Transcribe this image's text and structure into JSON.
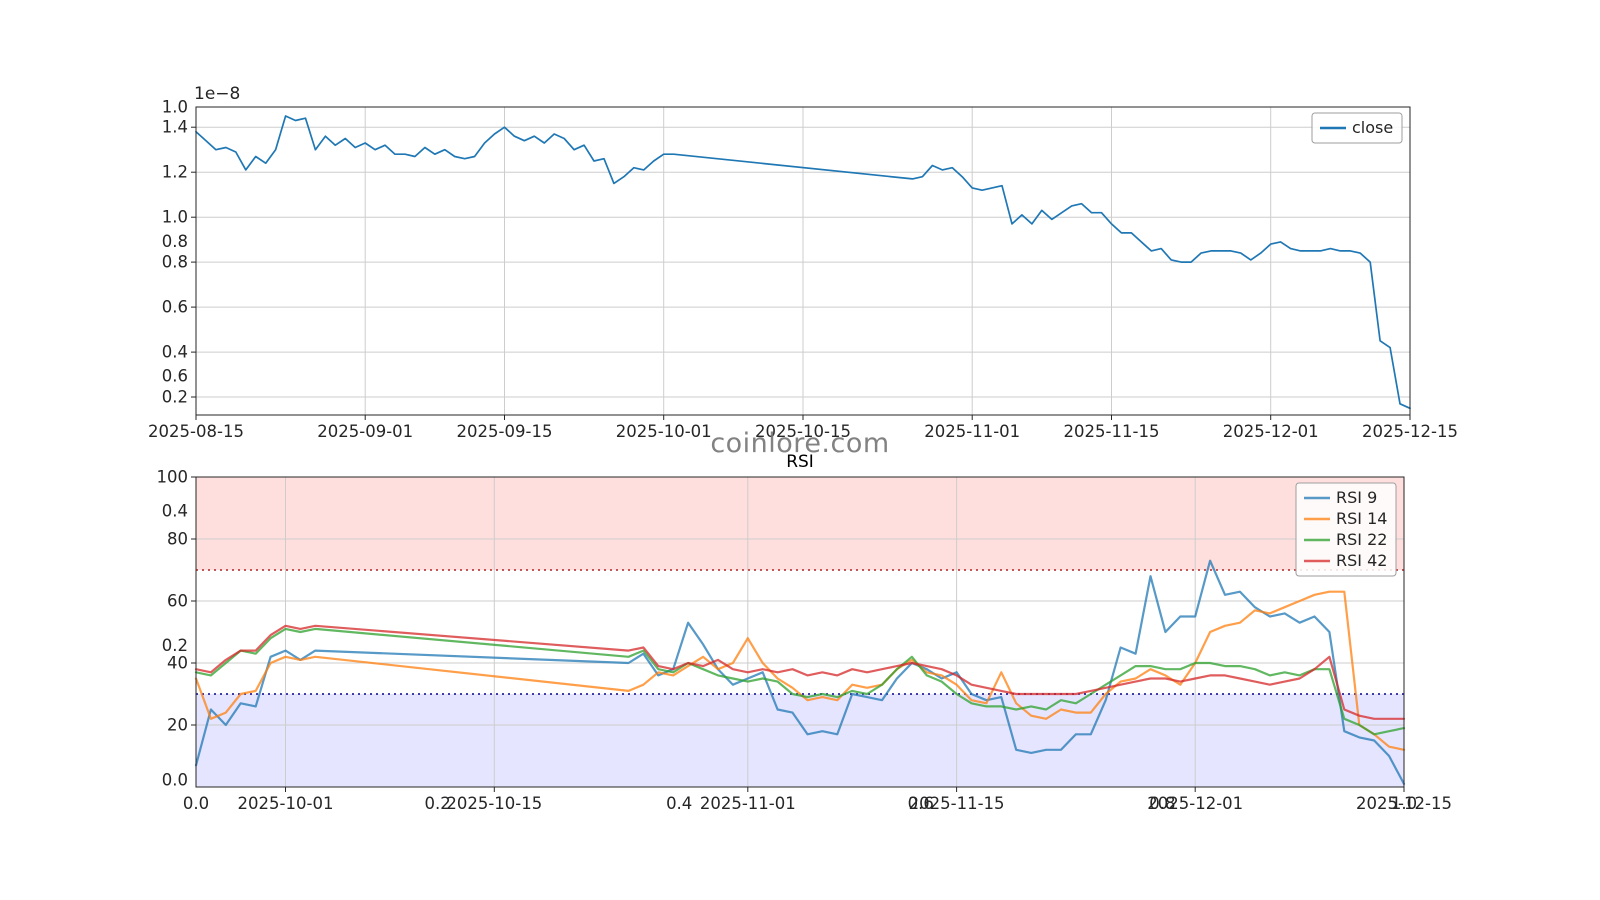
{
  "page": {
    "background": "#ffffff",
    "watermark": "coinlore.com"
  },
  "chart_data": [
    {
      "type": "line",
      "name": "price",
      "title": "",
      "y_offset_label": "1e−8",
      "x_unit": "days since 2025-08-15",
      "xlim": [
        0,
        122
      ],
      "ylim": [
        0.12,
        1.49
      ],
      "grid": true,
      "legend_position": "upper right",
      "xticks": [
        {
          "v": 0,
          "label": "2025-08-15"
        },
        {
          "v": 17,
          "label": "2025-09-01"
        },
        {
          "v": 31,
          "label": "2025-09-15"
        },
        {
          "v": 47,
          "label": "2025-10-01"
        },
        {
          "v": 61,
          "label": "2025-10-15"
        },
        {
          "v": 78,
          "label": "2025-11-01"
        },
        {
          "v": 92,
          "label": "2025-11-15"
        },
        {
          "v": 108,
          "label": "2025-12-01"
        },
        {
          "v": 122,
          "label": "2025-12-15"
        }
      ],
      "yticks": [
        {
          "v": 1.4,
          "label": "1.4"
        },
        {
          "v": 1.2,
          "label": "1.2"
        },
        {
          "v": 1.0,
          "label": "1.0"
        },
        {
          "v": 0.8,
          "label": "0.8"
        },
        {
          "v": 0.6,
          "label": "0.6"
        },
        {
          "v": 0.4,
          "label": "0.4"
        },
        {
          "v": 0.2,
          "label": "0.2"
        }
      ],
      "series": [
        {
          "name": "close",
          "color": "#1f77b4",
          "opacity": 1,
          "width": 1.7,
          "x": [
            0,
            1,
            2,
            3,
            4,
            5,
            6,
            7,
            8,
            9,
            10,
            11,
            12,
            13,
            14,
            15,
            16,
            17,
            18,
            19,
            20,
            21,
            22,
            23,
            24,
            25,
            26,
            27,
            28,
            29,
            30,
            31,
            32,
            33,
            34,
            35,
            36,
            37,
            38,
            39,
            40,
            41,
            42,
            43,
            44,
            45,
            46,
            47,
            48,
            72,
            73,
            74,
            75,
            76,
            77,
            78,
            79,
            80,
            81,
            82,
            83,
            84,
            85,
            86,
            87,
            88,
            89,
            90,
            91,
            92,
            93,
            94,
            95,
            96,
            97,
            98,
            99,
            100,
            101,
            102,
            103,
            104,
            105,
            106,
            107,
            108,
            109,
            110,
            111,
            112,
            113,
            114,
            115,
            116,
            117,
            118,
            119,
            120,
            121,
            122
          ],
          "y": [
            1.38,
            1.34,
            1.3,
            1.31,
            1.29,
            1.21,
            1.27,
            1.24,
            1.3,
            1.45,
            1.43,
            1.44,
            1.3,
            1.36,
            1.32,
            1.35,
            1.31,
            1.33,
            1.3,
            1.32,
            1.28,
            1.28,
            1.27,
            1.31,
            1.28,
            1.3,
            1.27,
            1.26,
            1.27,
            1.33,
            1.37,
            1.4,
            1.36,
            1.34,
            1.36,
            1.33,
            1.37,
            1.35,
            1.3,
            1.32,
            1.25,
            1.26,
            1.15,
            1.18,
            1.22,
            1.21,
            1.25,
            1.28,
            1.28,
            1.17,
            1.18,
            1.23,
            1.21,
            1.22,
            1.18,
            1.13,
            1.12,
            1.13,
            1.14,
            0.97,
            1.01,
            0.97,
            1.03,
            0.99,
            1.02,
            1.05,
            1.06,
            1.02,
            1.02,
            0.97,
            0.93,
            0.93,
            0.89,
            0.85,
            0.86,
            0.81,
            0.8,
            0.8,
            0.84,
            0.85,
            0.85,
            0.85,
            0.84,
            0.81,
            0.84,
            0.88,
            0.89,
            0.86,
            0.85,
            0.85,
            0.85,
            0.86,
            0.85,
            0.85,
            0.84,
            0.8,
            0.45,
            0.42,
            0.17,
            0.15
          ]
        }
      ]
    },
    {
      "type": "line",
      "name": "rsi",
      "title": "RSI",
      "x_unit": "days since 2025-09-25",
      "xlim": [
        0,
        81
      ],
      "ylim": [
        0,
        100
      ],
      "grid": true,
      "legend_position": "upper right",
      "bands": [
        {
          "name": "overbought-band",
          "from": 70,
          "to": 100,
          "color": "rgba(255,0,0,0.13)"
        },
        {
          "name": "oversold-band",
          "from": 0,
          "to": 30,
          "color": "rgba(0,0,255,0.10)"
        }
      ],
      "hlines": [
        {
          "name": "overbought-line",
          "y": 70,
          "color": "#b22222"
        },
        {
          "name": "oversold-line",
          "y": 30,
          "color": "#00008b"
        }
      ],
      "xticks": [
        {
          "v": 6,
          "label": "2025-10-01"
        },
        {
          "v": 20,
          "label": "2025-10-15"
        },
        {
          "v": 37,
          "label": "2025-11-01"
        },
        {
          "v": 51,
          "label": "2025-11-15"
        },
        {
          "v": 67,
          "label": "2025-12-01"
        },
        {
          "v": 81,
          "label": "2025-12-15"
        }
      ],
      "yticks": [
        {
          "v": 100,
          "label": "100"
        },
        {
          "v": 80,
          "label": "80"
        },
        {
          "v": 60,
          "label": "60"
        },
        {
          "v": 40,
          "label": "40"
        },
        {
          "v": 20,
          "label": "20"
        }
      ],
      "series": [
        {
          "name": "RSI 9",
          "color": "#1f77b4",
          "opacity": 0.75,
          "width": 2.2,
          "x": [
            0,
            1,
            2,
            3,
            4,
            5,
            6,
            7,
            8,
            29,
            30,
            31,
            32,
            33,
            34,
            35,
            36,
            37,
            38,
            39,
            40,
            41,
            42,
            43,
            44,
            45,
            46,
            47,
            48,
            49,
            50,
            51,
            52,
            53,
            54,
            55,
            56,
            57,
            58,
            59,
            60,
            61,
            62,
            63,
            64,
            65,
            66,
            67,
            68,
            69,
            70,
            71,
            72,
            73,
            74,
            75,
            76,
            77,
            78,
            79,
            80,
            81
          ],
          "y": [
            7,
            25,
            20,
            27,
            26,
            42,
            44,
            41,
            44,
            40,
            43,
            36,
            38,
            53,
            46,
            38,
            33,
            35,
            37,
            25,
            24,
            17,
            18,
            17,
            30,
            29,
            28,
            35,
            40,
            38,
            35,
            37,
            30,
            28,
            29,
            12,
            11,
            12,
            12,
            17,
            17,
            28,
            45,
            43,
            68,
            50,
            55,
            55,
            73,
            62,
            63,
            58,
            55,
            56,
            53,
            55,
            50,
            18,
            16,
            15,
            10,
            1
          ]
        },
        {
          "name": "RSI 14",
          "color": "#ff7f0e",
          "opacity": 0.75,
          "width": 2.2,
          "x": [
            0,
            1,
            2,
            3,
            4,
            5,
            6,
            7,
            8,
            29,
            30,
            31,
            32,
            33,
            34,
            35,
            36,
            37,
            38,
            39,
            40,
            41,
            42,
            43,
            44,
            45,
            46,
            47,
            48,
            49,
            50,
            51,
            52,
            53,
            54,
            55,
            56,
            57,
            58,
            59,
            60,
            61,
            62,
            63,
            64,
            65,
            66,
            67,
            68,
            69,
            70,
            71,
            72,
            73,
            74,
            75,
            76,
            77,
            78,
            79,
            80,
            81
          ],
          "y": [
            35,
            22,
            24,
            30,
            31,
            40,
            42,
            41,
            42,
            31,
            33,
            37,
            36,
            39,
            42,
            38,
            40,
            48,
            40,
            35,
            32,
            28,
            29,
            28,
            33,
            32,
            33,
            38,
            41,
            37,
            36,
            33,
            28,
            27,
            37,
            27,
            23,
            22,
            25,
            24,
            24,
            30,
            34,
            35,
            38,
            36,
            33,
            40,
            50,
            52,
            53,
            57,
            56,
            58,
            60,
            62,
            63,
            63,
            20,
            17,
            13,
            12
          ]
        },
        {
          "name": "RSI 22",
          "color": "#2ca02c",
          "opacity": 0.75,
          "width": 2.2,
          "x": [
            0,
            1,
            2,
            3,
            4,
            5,
            6,
            7,
            8,
            29,
            30,
            31,
            32,
            33,
            34,
            35,
            36,
            37,
            38,
            39,
            40,
            41,
            42,
            43,
            44,
            45,
            46,
            47,
            48,
            49,
            50,
            51,
            52,
            53,
            54,
            55,
            56,
            57,
            58,
            59,
            60,
            61,
            62,
            63,
            64,
            65,
            66,
            67,
            68,
            69,
            70,
            71,
            72,
            73,
            74,
            75,
            76,
            77,
            78,
            79,
            80,
            81
          ],
          "y": [
            37,
            36,
            40,
            44,
            43,
            48,
            51,
            50,
            51,
            42,
            44,
            38,
            37,
            40,
            38,
            36,
            35,
            34,
            35,
            34,
            30,
            29,
            30,
            29,
            31,
            30,
            33,
            38,
            42,
            36,
            34,
            30,
            27,
            26,
            26,
            25,
            26,
            25,
            28,
            27,
            30,
            33,
            36,
            39,
            39,
            38,
            38,
            40,
            40,
            39,
            39,
            38,
            36,
            37,
            36,
            38,
            38,
            22,
            20,
            17,
            18,
            19
          ]
        },
        {
          "name": "RSI 42",
          "color": "#d62728",
          "opacity": 0.75,
          "width": 2.2,
          "x": [
            0,
            1,
            2,
            3,
            4,
            5,
            6,
            7,
            8,
            29,
            30,
            31,
            32,
            33,
            34,
            35,
            36,
            37,
            38,
            39,
            40,
            41,
            42,
            43,
            44,
            45,
            46,
            47,
            48,
            49,
            50,
            51,
            52,
            53,
            54,
            55,
            56,
            57,
            58,
            59,
            60,
            61,
            62,
            63,
            64,
            65,
            66,
            67,
            68,
            69,
            70,
            71,
            72,
            73,
            74,
            75,
            76,
            77,
            78,
            79,
            80,
            81
          ],
          "y": [
            38,
            37,
            41,
            44,
            44,
            49,
            52,
            51,
            52,
            44,
            45,
            39,
            38,
            40,
            39,
            41,
            38,
            37,
            38,
            37,
            38,
            36,
            37,
            36,
            38,
            37,
            38,
            39,
            40,
            39,
            38,
            36,
            33,
            32,
            31,
            30,
            30,
            30,
            30,
            30,
            31,
            32,
            33,
            34,
            35,
            35,
            34,
            35,
            36,
            36,
            35,
            34,
            33,
            34,
            35,
            38,
            42,
            25,
            23,
            22,
            22,
            22
          ]
        }
      ]
    }
  ],
  "twin_axis": {
    "y_tick_labels": [
      "0.0",
      "0.2",
      "0.4",
      "0.6",
      "0.8",
      "1.0"
    ],
    "x_tick_labels": [
      "0.0",
      "0.2",
      "0.4",
      "0.6",
      "0.8",
      "1.0"
    ]
  }
}
